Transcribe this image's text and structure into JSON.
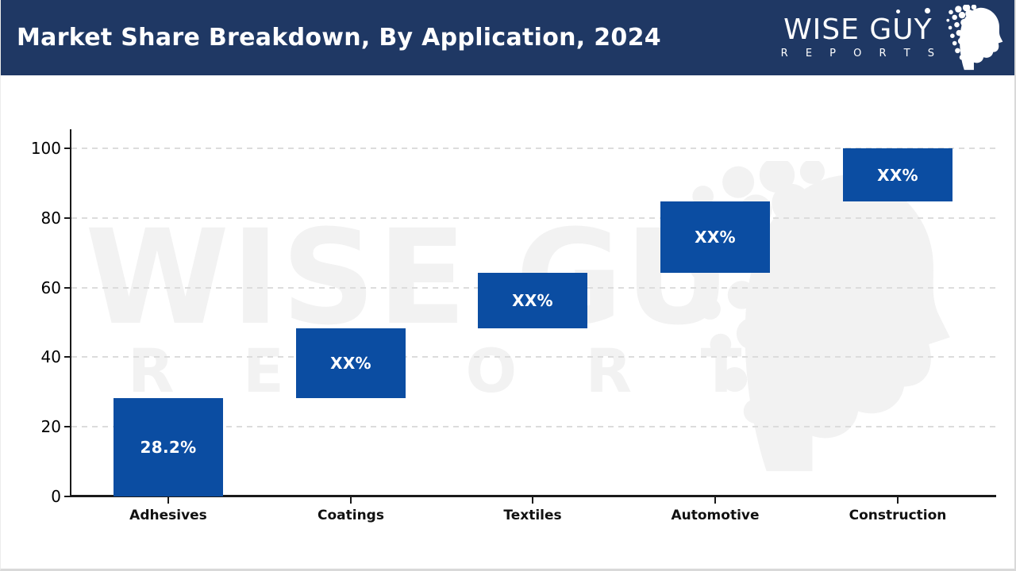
{
  "header": {
    "title": "Market Share Breakdown, By Application, 2024",
    "logo": {
      "line1": "WISE GUY",
      "line2": "R E P O R T S"
    }
  },
  "watermark": {
    "line1": "WISE GUY",
    "line2": "R E P O R T S"
  },
  "colors": {
    "header_bg": "#1f3864",
    "bar_blue": "#0b4da2",
    "gridline": "#dcdcdc",
    "watermark": "#f2f2f2",
    "axis": "#1a1a1a"
  },
  "chart_data": {
    "type": "bar",
    "subtype": "waterfall-floating-bars",
    "title": "Market Share Breakdown, By Application, 2024",
    "categories": [
      "Adhesives",
      "Coatings",
      "Textiles",
      "Automotive",
      "Construction"
    ],
    "segments": [
      {
        "start": 0,
        "end": 28.2,
        "label": "28.2%"
      },
      {
        "start": 28.2,
        "end": 48.3,
        "label": "XX%"
      },
      {
        "start": 48.3,
        "end": 64.2,
        "label": "XX%"
      },
      {
        "start": 64.2,
        "end": 84.7,
        "label": "XX%"
      },
      {
        "start": 84.7,
        "end": 100,
        "label": "XX%"
      }
    ],
    "values": [
      28.2,
      20.1,
      15.9,
      20.5,
      15.3
    ],
    "xlabel": "",
    "ylabel": "",
    "ylim": [
      0,
      105
    ],
    "yticks": [
      0,
      20,
      40,
      60,
      80,
      100
    ],
    "grid": true,
    "grid_style": "dashed",
    "legend": "none",
    "bar_color": "#0b4da2"
  }
}
